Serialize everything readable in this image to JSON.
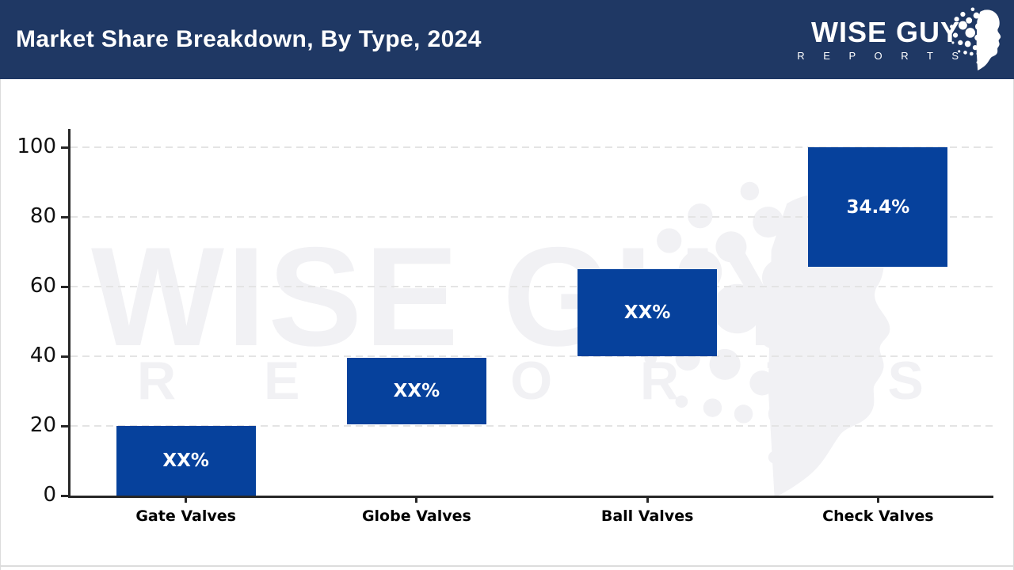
{
  "header": {
    "title": "Market Share Breakdown, By Type, 2024",
    "logo": {
      "line1": "WISE GUY",
      "line2": "R E P O R T S",
      "icon": "dotted-head-profile-icon"
    }
  },
  "watermark": {
    "line1": "WISE GUY",
    "line2": "R E P O R T S"
  },
  "colors": {
    "header_bg": "#1F3864",
    "bar_blue": "#06419C",
    "gridline": "#E4E4E4",
    "axis": "#262626",
    "watermark_gray": "#F1F1F4",
    "bar_label_text": "#FFFFFF",
    "tick_label_text": "#111111"
  },
  "chart_data": {
    "type": "bar",
    "subtype": "waterfall",
    "title": "Market Share Breakdown, By Type, 2024",
    "categories": [
      "Gate Valves",
      "Globe Valves",
      "Ball Valves",
      "Check Valves"
    ],
    "segments": [
      {
        "category": "Gate Valves",
        "start": 0,
        "end": 20,
        "label": "XX%"
      },
      {
        "category": "Globe Valves",
        "start": 20.5,
        "end": 39.5,
        "label": "XX%"
      },
      {
        "category": "Ball Valves",
        "start": 40,
        "end": 65,
        "label": "XX%"
      },
      {
        "category": "Check Valves",
        "start": 65.6,
        "end": 100,
        "label": "34.4%"
      }
    ],
    "y_ticks": [
      0,
      20,
      40,
      60,
      80,
      100
    ],
    "ylim": [
      0,
      100
    ],
    "xlabel": "",
    "ylabel": "",
    "grid": "horizontal-dashed",
    "legend": null
  }
}
